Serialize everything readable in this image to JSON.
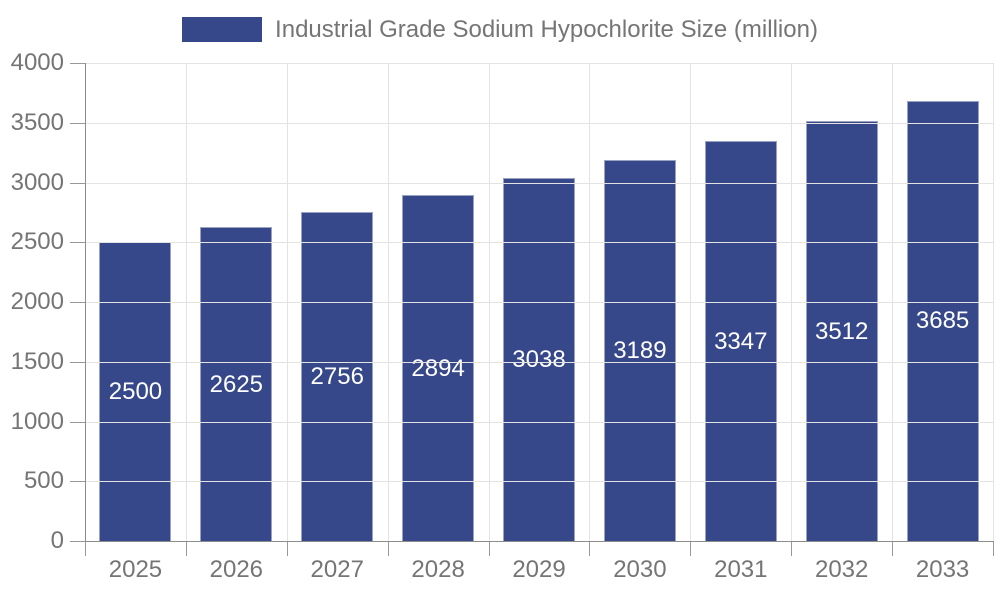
{
  "legend": {
    "label": "Industrial Grade Sodium Hypochlorite Size (million)"
  },
  "colors": {
    "bar": "#36488A",
    "bar_border": "#9AA2C2",
    "grid_line": "#E3E3E3",
    "axis_line": "#8C8C8C",
    "tick_mark": "#999999",
    "tick_label": "#757575",
    "legend_text": "#757575",
    "value_label": "#FFFFFF",
    "background": "#FFFFFF"
  },
  "chart_data": {
    "type": "bar",
    "title": "Industrial Grade Sodium Hypochlorite Size (million)",
    "categories": [
      "2025",
      "2026",
      "2027",
      "2028",
      "2029",
      "2030",
      "2031",
      "2032",
      "2033"
    ],
    "values": [
      2500,
      2625,
      2756,
      2894,
      3038,
      3189,
      3347,
      3512,
      3685
    ],
    "xlabel": "",
    "ylabel": "",
    "ylim": [
      0,
      4000
    ],
    "yticks": [
      0,
      500,
      1000,
      1500,
      2000,
      2500,
      3000,
      3500,
      4000
    ],
    "grid": true,
    "legend_position": "top",
    "bar_labels_inside": true
  }
}
